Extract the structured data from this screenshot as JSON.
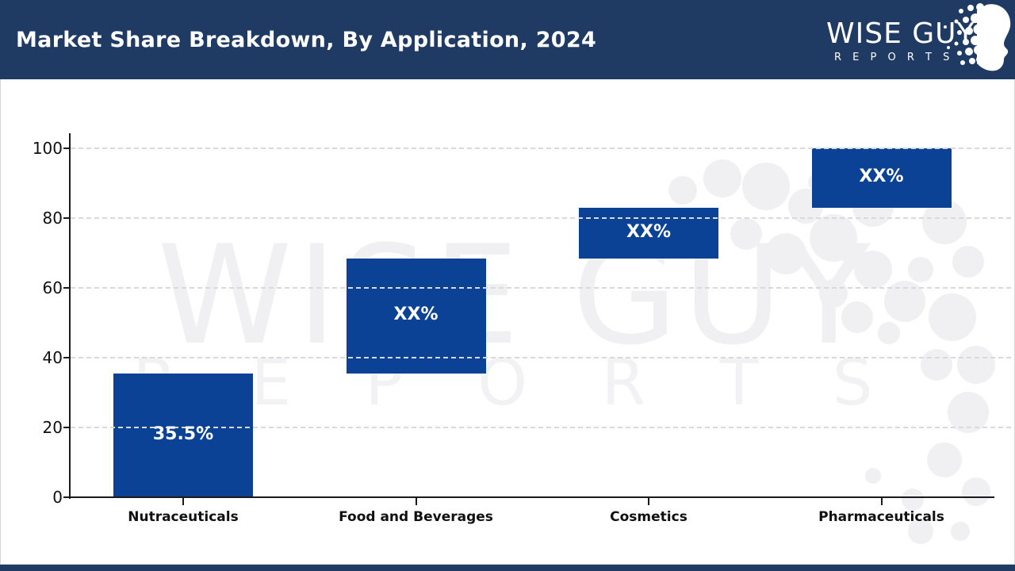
{
  "header": {
    "title": "Market Share Breakdown, By Application, 2024",
    "logo": {
      "line1": "WISE GUY",
      "line2": "R E P O R T S"
    }
  },
  "watermark": {
    "line1": "WISE GUY",
    "line2": "R E P O R T S"
  },
  "chart_data": {
    "type": "bar",
    "variant": "floating-segment-waterfall",
    "title": "Market Share Breakdown, By Application, 2024",
    "categories": [
      "Nutraceuticals",
      "Food and Beverages",
      "Cosmetics",
      "Pharmaceuticals"
    ],
    "segments": [
      {
        "category": "Nutraceuticals",
        "start": 0,
        "end": 35.5,
        "label": "35.5%"
      },
      {
        "category": "Food and Beverages",
        "start": 35.5,
        "end": 68.5,
        "label": "XX%"
      },
      {
        "category": "Cosmetics",
        "start": 68.5,
        "end": 83.0,
        "label": "XX%"
      },
      {
        "category": "Pharmaceuticals",
        "start": 83.0,
        "end": 100.0,
        "label": "XX%"
      }
    ],
    "xlabel": "",
    "ylabel": "",
    "ylim": [
      0,
      100
    ],
    "yticks": [
      0,
      20,
      40,
      60,
      80,
      100
    ],
    "grid": "horizontal-dashed",
    "legend": "none",
    "colors": {
      "bar": "#0B4295",
      "bar_label": "#FFFFFF",
      "header_bg": "#1F3A63",
      "grid": "#D9D9D9",
      "axis": "#1A1A1A",
      "watermark": "#F0F0F2"
    }
  }
}
